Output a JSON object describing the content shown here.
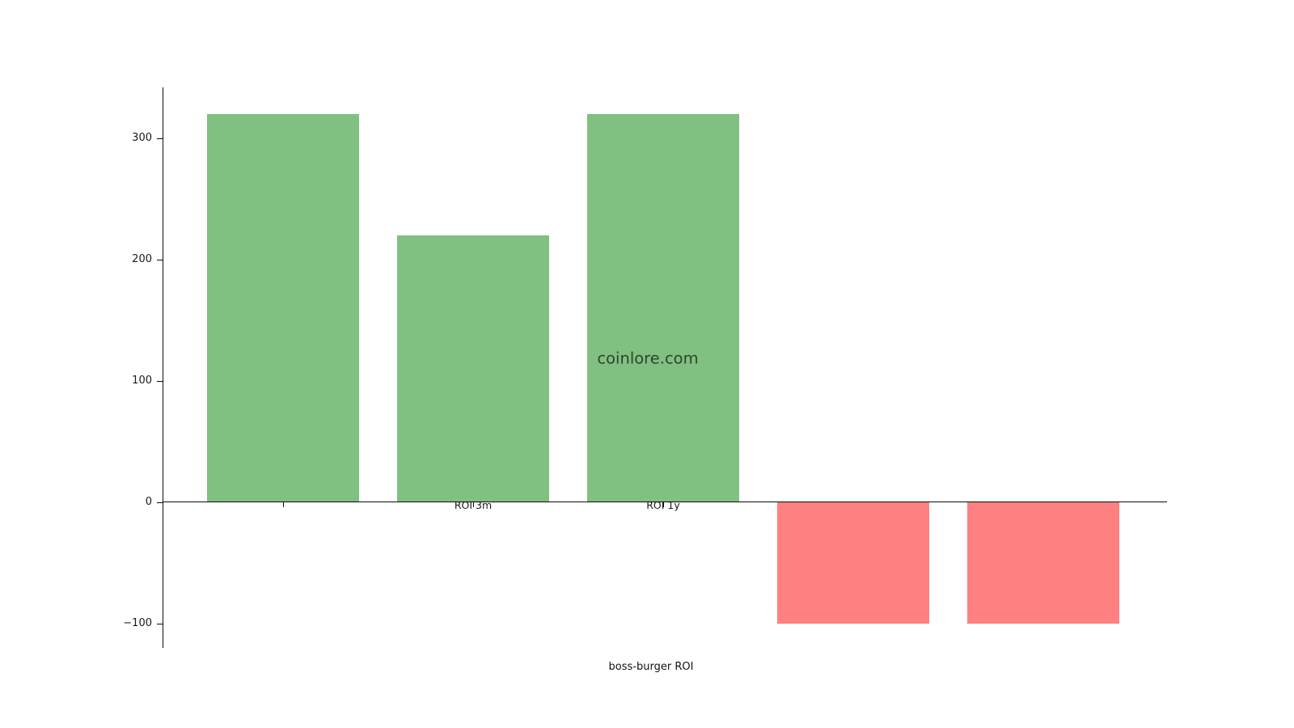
{
  "chart_data": {
    "type": "bar",
    "categories": [
      "",
      "ROI 3m",
      "ROI 1y",
      "",
      ""
    ],
    "values": [
      320,
      220,
      320,
      -100,
      -100
    ],
    "title": "",
    "xlabel": "boss-burger ROI",
    "ylabel": "",
    "yticks": [
      300,
      200,
      100,
      0,
      -100
    ],
    "ytick_labels": [
      "300",
      "200",
      "100",
      "0",
      "−100"
    ],
    "ylim": [
      -121,
      341
    ],
    "grid": false,
    "legend_position": "none",
    "bar_colors": {
      "positive": "#80c080",
      "negative": "#ff8080"
    },
    "axis_color": "#0c0c0c",
    "watermark": "coinlore.com"
  }
}
